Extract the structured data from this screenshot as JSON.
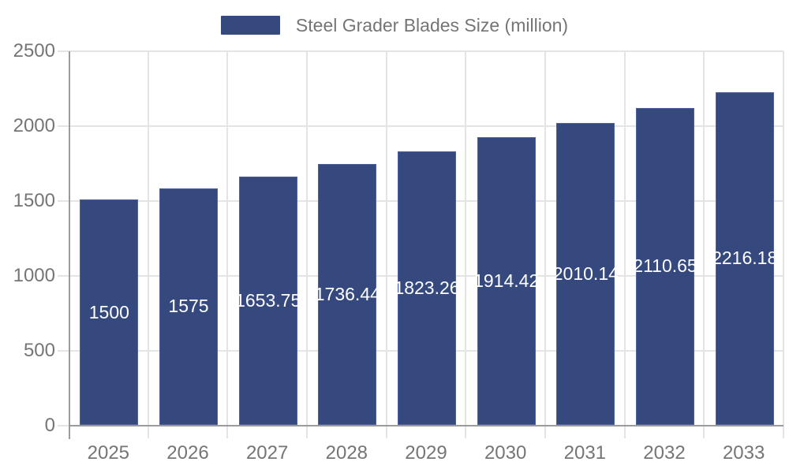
{
  "legend": {
    "label": "Steel Grader Blades Size (million)"
  },
  "colors": {
    "bar": "#36497f",
    "bar_border": "#50629b",
    "value_text": "#ffffff",
    "grid": "#e4e4e4",
    "axis_line": "#9b9b9b",
    "tick_text": "#757575",
    "background": "#ffffff"
  },
  "chart_data": {
    "type": "bar",
    "title": "Steel Grader Blades Size (million)",
    "categories": [
      "2025",
      "2026",
      "2027",
      "2028",
      "2029",
      "2030",
      "2031",
      "2032",
      "2033"
    ],
    "values": [
      1500,
      1575,
      1653.75,
      1736.44,
      1823.26,
      1914.42,
      2010.14,
      2110.65,
      2216.18
    ],
    "value_labels": [
      "1500",
      "1575",
      "1653.75",
      "1736.44",
      "1823.26",
      "1914.42",
      "2010.14",
      "2110.65",
      "2216.18"
    ],
    "xlabel": "",
    "ylabel": "",
    "ylim": [
      0,
      2500
    ],
    "yticks": [
      0,
      500,
      1000,
      1500,
      2000,
      2500
    ],
    "grid": true,
    "legend_position": "top-center",
    "value_label_position": "inside-center"
  }
}
